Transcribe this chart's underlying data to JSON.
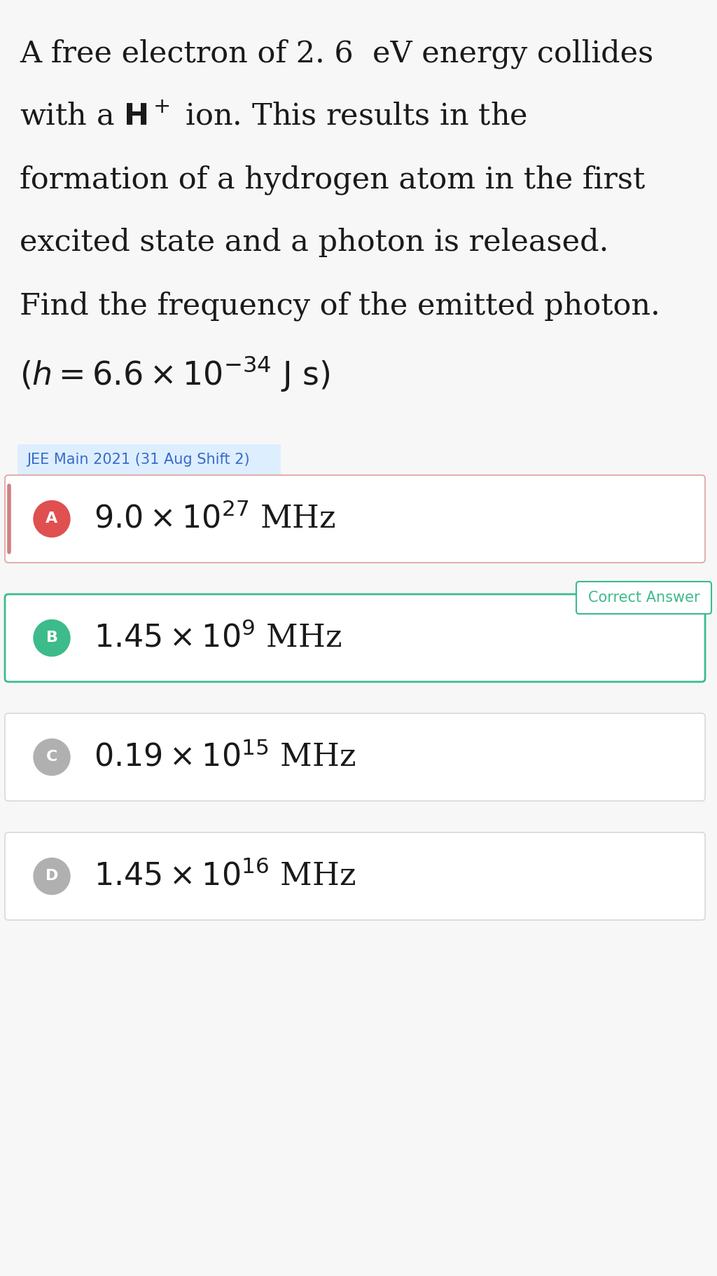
{
  "background_color": "#f7f7f7",
  "q_line1": "A free electron of 2. 6  eV energy collides",
  "q_line2_pre": "with a H",
  "q_line2_sup": "+",
  "q_line2_post": " ion. This results in the",
  "q_line3": "formation of a hydrogen atom in the first",
  "q_line4": "excited state and a photon is released.",
  "q_line5": "Find the frequency of the emitted photon.",
  "q_line6": "$(h = 6. 6 \\times 10^{-34}$ J s$)$",
  "tag_text": "JEE Main 2021 (31 Aug Shift 2)",
  "tag_bg": "#ddeeff",
  "tag_text_color": "#3a6bc9",
  "options": [
    {
      "label": "A",
      "math_text": "$9. 0 \\times 10^{27}$ MHz",
      "circle_color": "#e05050",
      "text_color": "#1a1a1a",
      "border_color": "#e0a0a0",
      "bg_color": "#ffffff",
      "is_correct": false,
      "has_left_accent": true,
      "accent_color": "#d08080"
    },
    {
      "label": "B",
      "math_text": "$1. 45 \\times 10^{9}$ MHz",
      "circle_color": "#3dbb8a",
      "text_color": "#1a1a1a",
      "border_color": "#3dbb8a",
      "bg_color": "#ffffff",
      "is_correct": true,
      "has_left_accent": false,
      "accent_color": ""
    },
    {
      "label": "C",
      "math_text": "$0. 19 \\times 10^{15}$ MHz",
      "circle_color": "#b0b0b0",
      "text_color": "#1a1a1a",
      "border_color": "#d8d8d8",
      "bg_color": "#ffffff",
      "is_correct": false,
      "has_left_accent": false,
      "accent_color": ""
    },
    {
      "label": "D",
      "math_text": "$1. 45 \\times 10^{16}$ MHz",
      "circle_color": "#b0b0b0",
      "text_color": "#1a1a1a",
      "border_color": "#d8d8d8",
      "bg_color": "#ffffff",
      "is_correct": false,
      "has_left_accent": false,
      "accent_color": ""
    }
  ],
  "correct_answer_label": "Correct Answer",
  "correct_answer_border": "#3dbb8a",
  "correct_answer_text_color": "#3dbb8a"
}
